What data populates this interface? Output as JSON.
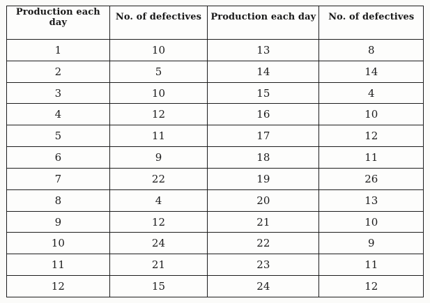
{
  "table": {
    "headers": [
      "Production each day",
      "No. of defectives",
      "Production each day",
      "No. of defectives"
    ],
    "rows": [
      [
        "1",
        "10",
        "13",
        "8"
      ],
      [
        "2",
        "5",
        "14",
        "14"
      ],
      [
        "3",
        "10",
        "15",
        "4"
      ],
      [
        "4",
        "12",
        "16",
        "10"
      ],
      [
        "5",
        "11",
        "17",
        "12"
      ],
      [
        "6",
        "9",
        "18",
        "11"
      ],
      [
        "7",
        "22",
        "19",
        "26"
      ],
      [
        "8",
        "4",
        "20",
        "13"
      ],
      [
        "9",
        "12",
        "21",
        "10"
      ],
      [
        "10",
        "24",
        "22",
        "9"
      ],
      [
        "11",
        "21",
        "23",
        "11"
      ],
      [
        "12",
        "15",
        "24",
        "12"
      ]
    ]
  }
}
